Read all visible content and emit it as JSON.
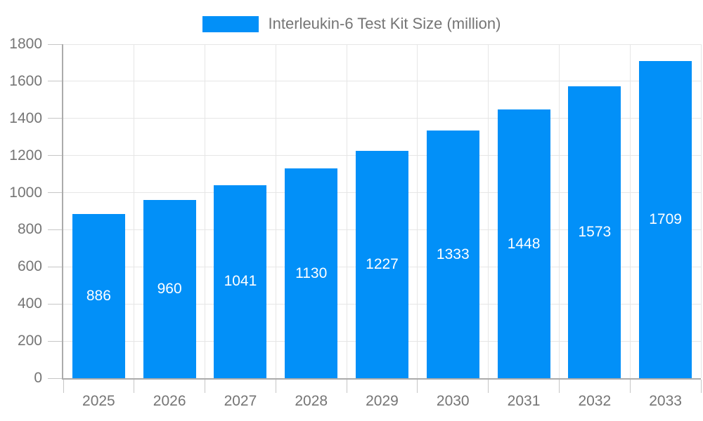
{
  "chart_data": {
    "type": "bar",
    "categories": [
      "2025",
      "2026",
      "2027",
      "2028",
      "2029",
      "2030",
      "2031",
      "2032",
      "2033"
    ],
    "values": [
      886,
      960,
      1041,
      1130,
      1227,
      1333,
      1448,
      1573,
      1709
    ],
    "title": "",
    "legend": "Interleukin-6 Test Kit Size (million)",
    "xlabel": "",
    "ylabel": "",
    "ylim": [
      0,
      1800
    ],
    "ytick_step": 200,
    "grid": true,
    "legend_position": "top-center",
    "bar_value_labels_shown": true,
    "colors": {
      "bar": "#0290f8",
      "bar_label": "#ffffff",
      "axis_text": "#757575",
      "gridline": "#e6e6e6",
      "axis_line": "#ababab",
      "tick": "#c6c6c6",
      "background": "#ffffff"
    }
  }
}
